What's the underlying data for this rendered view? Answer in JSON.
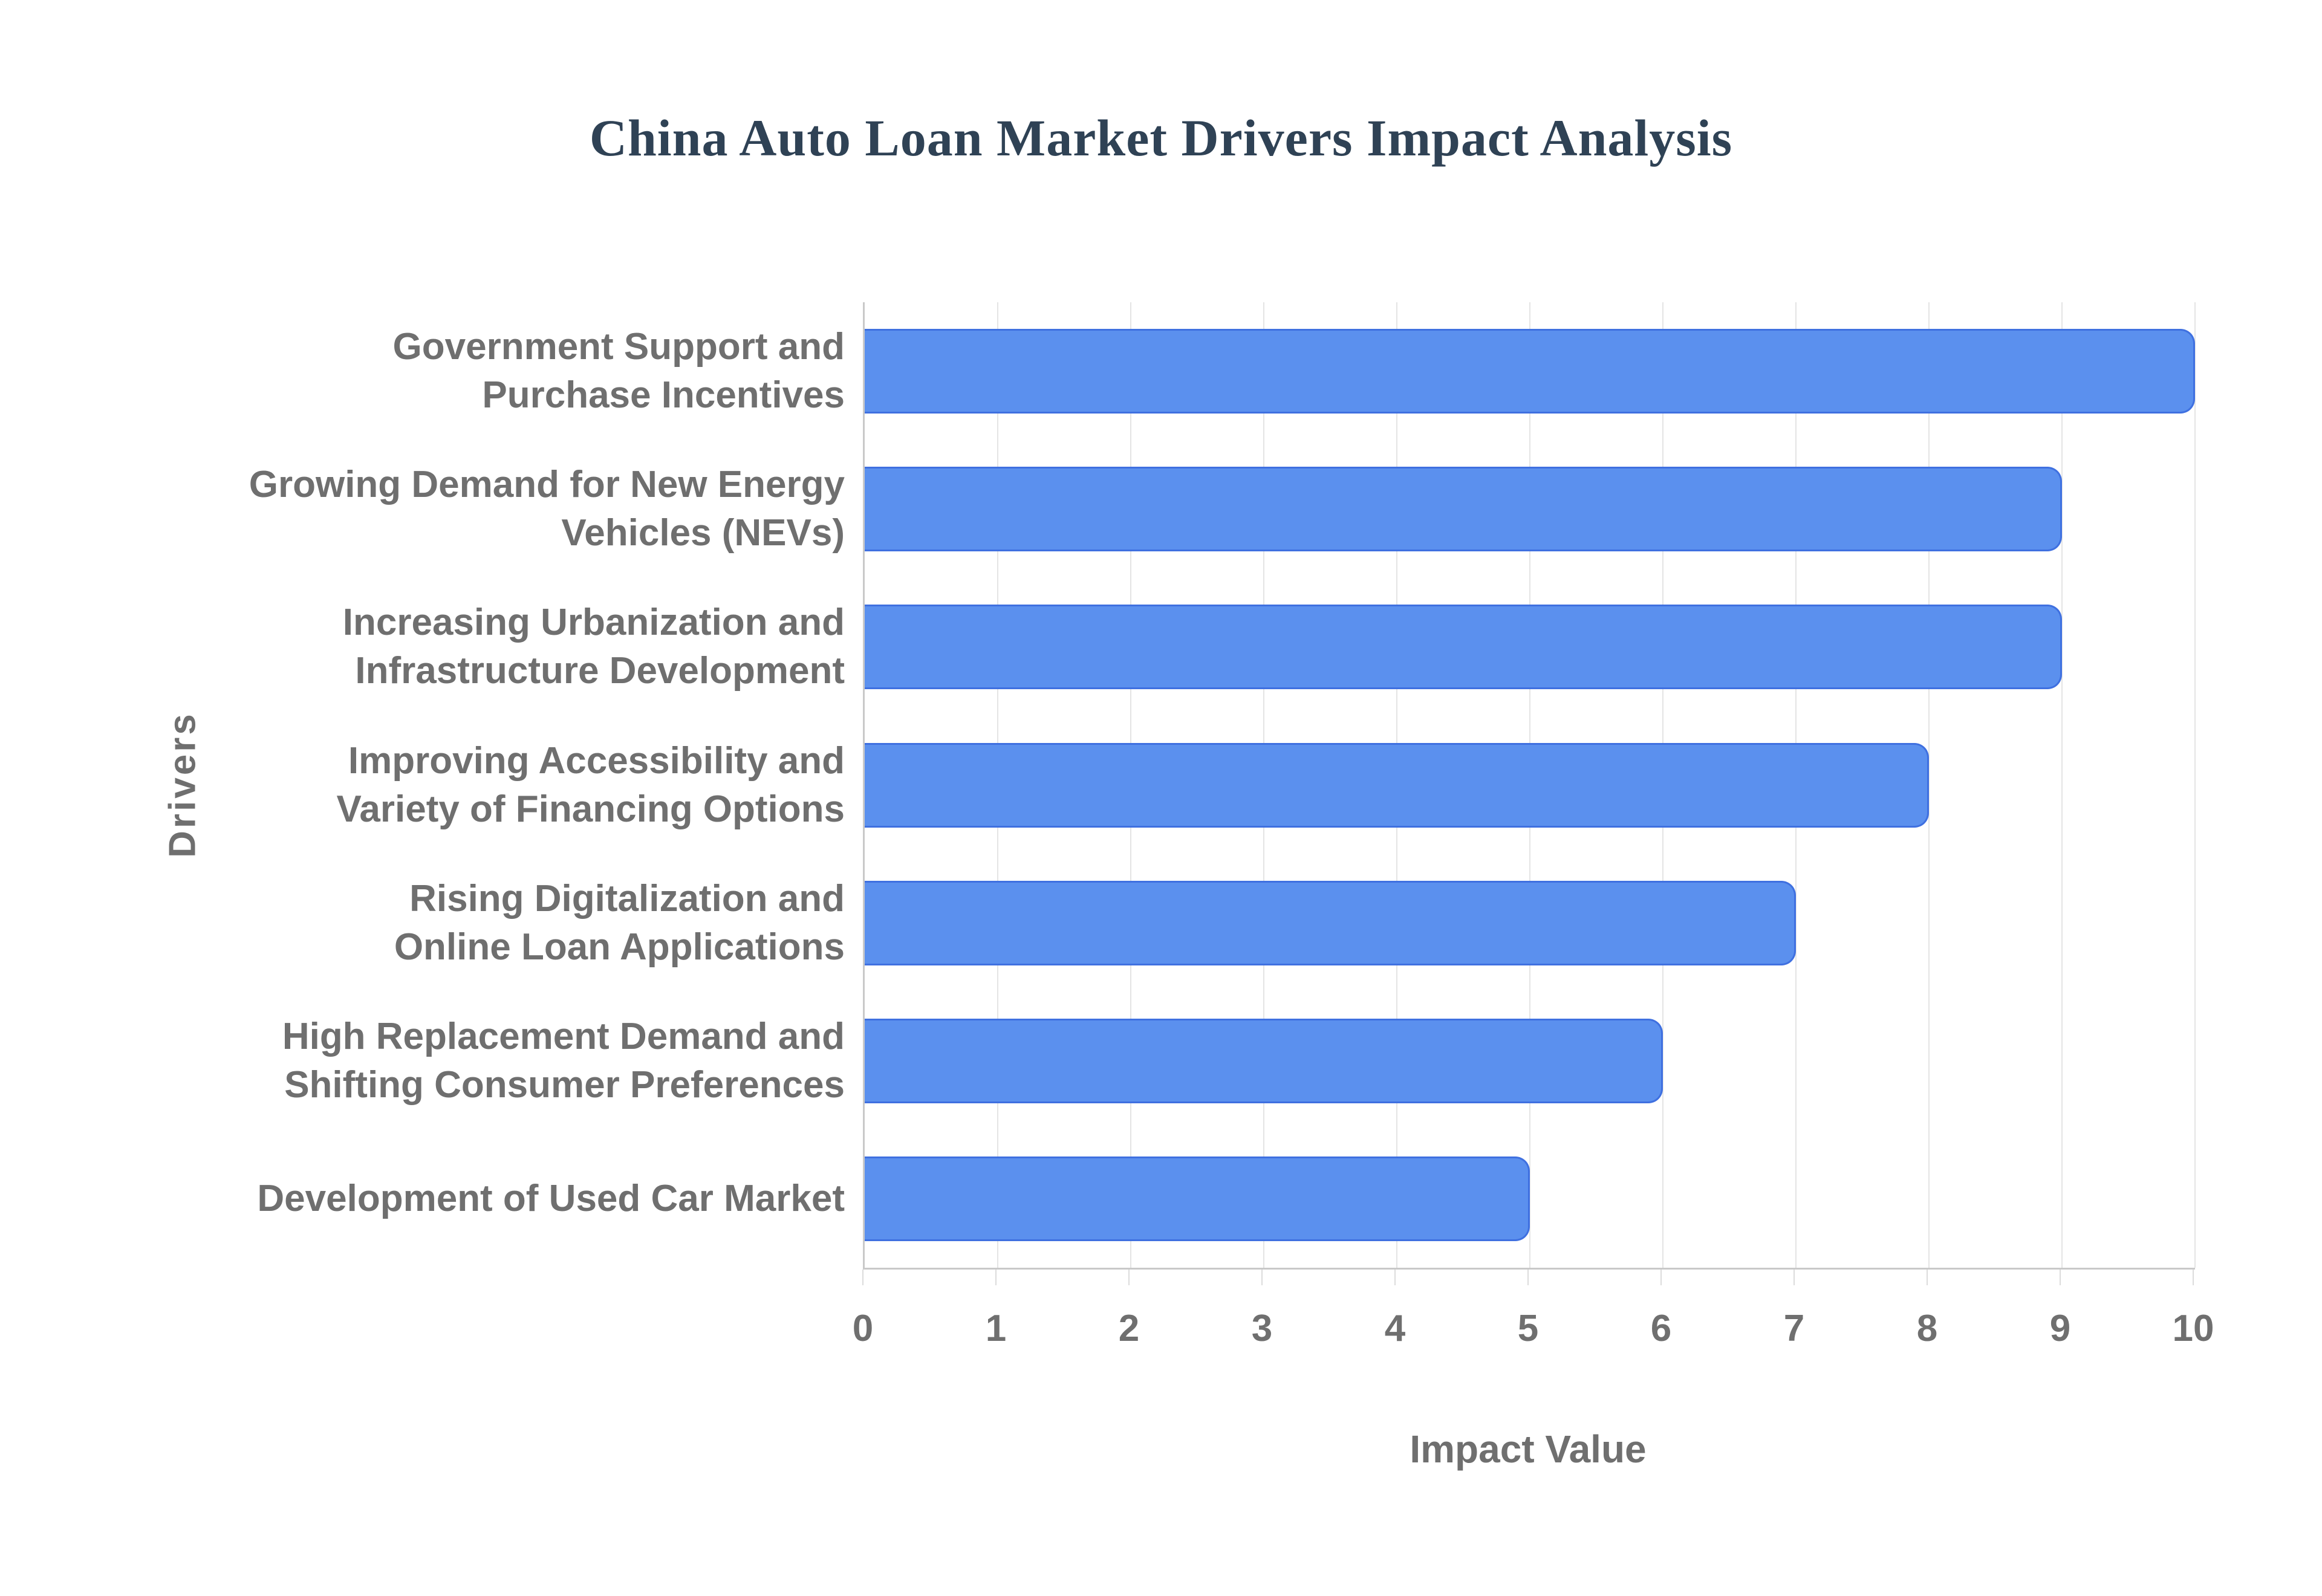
{
  "title": "China Auto Loan Market Drivers Impact Analysis",
  "chart_data": {
    "type": "bar",
    "orientation": "horizontal",
    "title": "China Auto Loan Market Drivers Impact Analysis",
    "xlabel": "Impact Value",
    "ylabel": "Drivers",
    "categories": [
      "Government Support and Purchase Incentives",
      "Growing Demand for New Energy Vehicles (NEVs)",
      "Increasing Urbanization and Infrastructure Development",
      "Improving Accessibility and Variety of Financing Options",
      "Rising Digitalization and Online Loan Applications",
      "High Replacement Demand and Shifting Consumer Preferences",
      "Development of Used Car Market"
    ],
    "category_lines": [
      [
        "Government Support and",
        "Purchase Incentives"
      ],
      [
        "Growing Demand for New Energy",
        "Vehicles (NEVs)"
      ],
      [
        "Increasing Urbanization and",
        "Infrastructure Development"
      ],
      [
        "Improving Accessibility and",
        "Variety of Financing Options"
      ],
      [
        "Rising Digitalization and",
        "Online Loan Applications"
      ],
      [
        "High Replacement Demand and",
        "Shifting Consumer Preferences"
      ],
      [
        "Development of Used Car Market"
      ]
    ],
    "values": [
      10,
      9,
      9,
      8,
      7,
      6,
      5
    ],
    "xlim": [
      0,
      10
    ],
    "xticks": [
      0,
      1,
      2,
      3,
      4,
      5,
      6,
      7,
      8,
      9,
      10
    ],
    "grid": true,
    "legend": "none",
    "colors": {
      "bar_fill": "#5b90ee",
      "bar_border": "#3f70e0",
      "gridline": "#e4e4e4",
      "axis_line": "#c9c9c9",
      "tick_mark": "#dcdcdc",
      "label_text": "#6f6f6f",
      "title_text": "#2f4255",
      "background": "#ffffff"
    }
  }
}
